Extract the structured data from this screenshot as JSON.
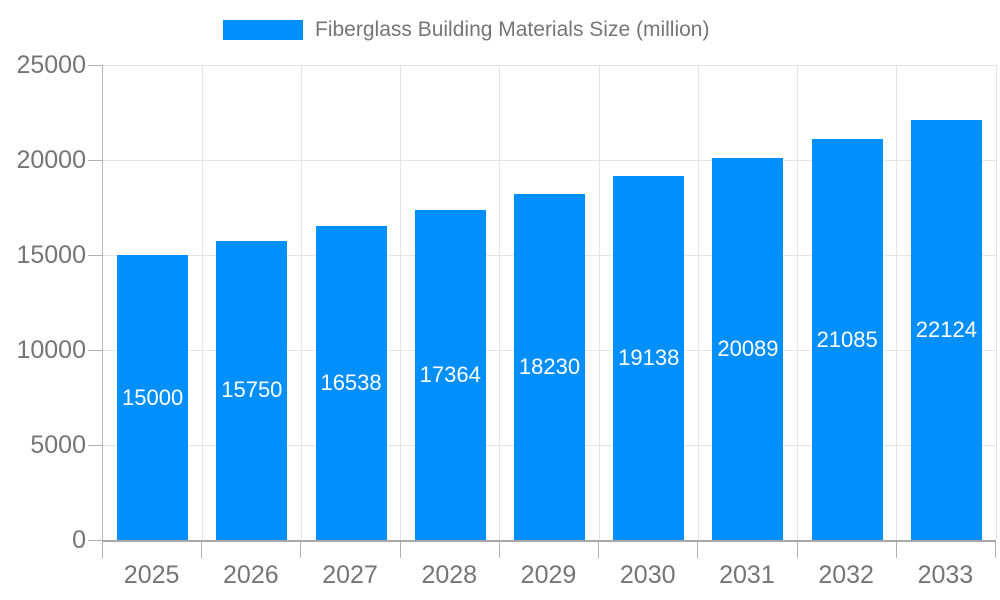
{
  "chart_data": {
    "type": "bar",
    "title": "Fiberglass Building Materials Size (million)",
    "categories": [
      "2025",
      "2026",
      "2027",
      "2028",
      "2029",
      "2030",
      "2031",
      "2032",
      "2033"
    ],
    "values": [
      15000,
      15750,
      16538,
      17364,
      18230,
      19138,
      20089,
      21085,
      22124
    ],
    "value_labels": [
      "15000",
      "15750",
      "16538",
      "17364",
      "18230",
      "19138",
      "20089",
      "21085",
      "22124"
    ],
    "xlabel": "",
    "ylabel": "",
    "ylim": [
      0,
      25000
    ],
    "yticks": [
      0,
      5000,
      10000,
      15000,
      20000,
      25000
    ],
    "grid": true,
    "legend_position": "top",
    "bar_color": "#008FFB",
    "bar_label_color": "#ffffff",
    "axis_label_color": "#757575",
    "grid_color": "#e4e4e4"
  }
}
